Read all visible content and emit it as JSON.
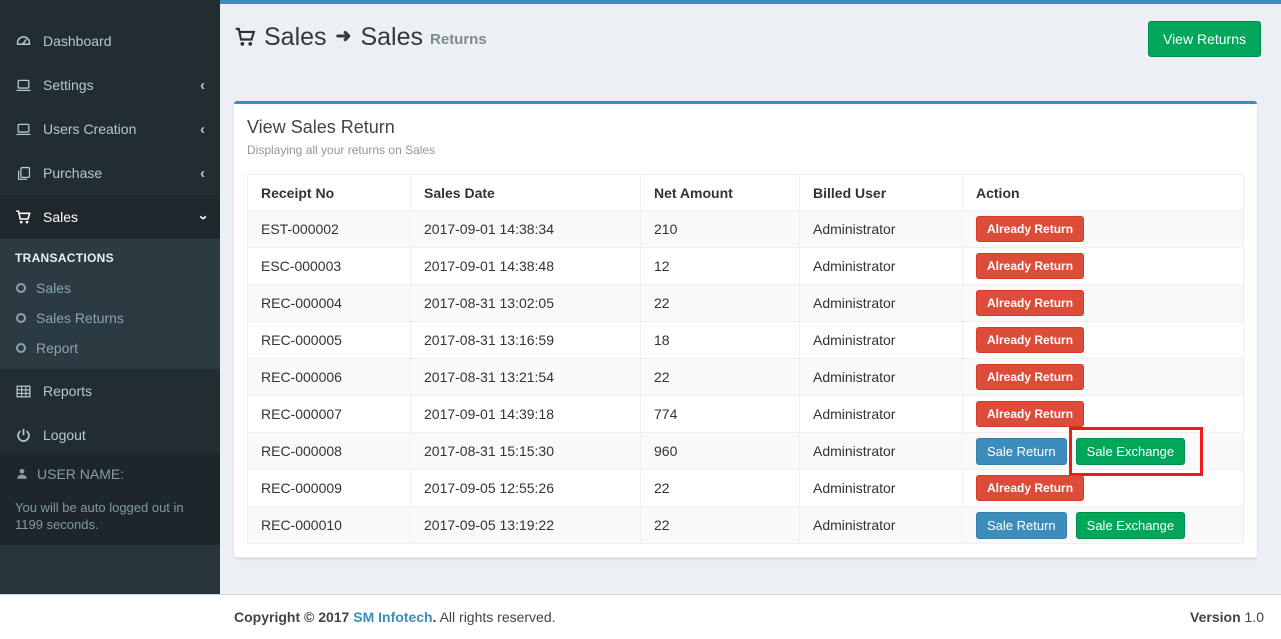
{
  "sidebar": {
    "items": [
      {
        "label": "Dashboard",
        "icon": "gauge",
        "chevron": null,
        "active": false
      },
      {
        "label": "Settings",
        "icon": "laptop",
        "chevron": "left",
        "active": false
      },
      {
        "label": "Users Creation",
        "icon": "laptop",
        "chevron": "left",
        "active": false
      },
      {
        "label": "Purchase",
        "icon": "copy",
        "chevron": "left",
        "active": false
      },
      {
        "label": "Sales",
        "icon": "cart",
        "chevron": "down",
        "active": true
      }
    ],
    "submenu_header": "TRANSACTIONS",
    "submenu": [
      {
        "label": "Sales",
        "icon": "circle-o"
      },
      {
        "label": "Sales Returns",
        "icon": "circle-o"
      },
      {
        "label": "Report",
        "icon": "circle-o"
      }
    ],
    "items_bottom": [
      {
        "label": "Reports",
        "icon": "table-grid"
      },
      {
        "label": "Logout",
        "icon": "power"
      }
    ],
    "user_label": "USER NAME:",
    "user_icon": "user",
    "user_note_line1": "You will be auto logged out in",
    "user_note_line2": "1199 seconds."
  },
  "header": {
    "breadcrumb_icon": "shopping-cart",
    "breadcrumb_primary": "Sales",
    "breadcrumb_arrow": "➜",
    "breadcrumb_secondary": "Sales",
    "breadcrumb_small": "Returns",
    "view_returns_button": "View Returns"
  },
  "card": {
    "title": "View Sales Return",
    "subtitle": "Displaying all your returns on Sales",
    "columns": [
      "Receipt No",
      "Sales Date",
      "Net Amount",
      "Billed User",
      "Action"
    ],
    "action_labels": {
      "already_return": "Already Return",
      "sale_return": "Sale Return",
      "sale_exchange": "Sale Exchange"
    },
    "rows": [
      {
        "receipt": "EST-000002",
        "date": "2017-09-01 14:38:34",
        "amount": "210",
        "user": "Administrator",
        "actions": [
          {
            "type": "already_return"
          }
        ]
      },
      {
        "receipt": "ESC-000003",
        "date": "2017-09-01 14:38:48",
        "amount": "12",
        "user": "Administrator",
        "actions": [
          {
            "type": "already_return"
          }
        ]
      },
      {
        "receipt": "REC-000004",
        "date": "2017-08-31 13:02:05",
        "amount": "22",
        "user": "Administrator",
        "actions": [
          {
            "type": "already_return"
          }
        ]
      },
      {
        "receipt": "REC-000005",
        "date": "2017-08-31 13:16:59",
        "amount": "18",
        "user": "Administrator",
        "actions": [
          {
            "type": "already_return"
          }
        ]
      },
      {
        "receipt": "REC-000006",
        "date": "2017-08-31 13:21:54",
        "amount": "22",
        "user": "Administrator",
        "actions": [
          {
            "type": "already_return"
          }
        ]
      },
      {
        "receipt": "REC-000007",
        "date": "2017-09-01 14:39:18",
        "amount": "774",
        "user": "Administrator",
        "actions": [
          {
            "type": "already_return"
          }
        ]
      },
      {
        "receipt": "REC-000008",
        "date": "2017-08-31 15:15:30",
        "amount": "960",
        "user": "Administrator",
        "actions": [
          {
            "type": "sale_return"
          },
          {
            "type": "sale_exchange",
            "highlighted": true
          }
        ]
      },
      {
        "receipt": "REC-000009",
        "date": "2017-09-05 12:55:26",
        "amount": "22",
        "user": "Administrator",
        "actions": [
          {
            "type": "already_return"
          }
        ]
      },
      {
        "receipt": "REC-000010",
        "date": "2017-09-05 13:19:22",
        "amount": "22",
        "user": "Administrator",
        "actions": [
          {
            "type": "sale_return"
          },
          {
            "type": "sale_exchange"
          }
        ]
      }
    ]
  },
  "footer": {
    "copyright_prefix": "Copyright © 2017 ",
    "company": "SM Infotech",
    "copyright_dot": ".",
    "rights": " All rights reserved.",
    "version_label": "Version",
    "version_value": " 1.0"
  },
  "colors": {
    "accent_blue": "#3c8dbc",
    "success_green": "#00a65a",
    "danger_red": "#dd4b39",
    "highlight_red": "#ec1c1c",
    "sidebar_bg": "#222d32",
    "sidebar_submenu_bg": "#2c3b41",
    "sidebar_active_bg": "#1e282c",
    "content_bg": "#ecf0f5"
  }
}
